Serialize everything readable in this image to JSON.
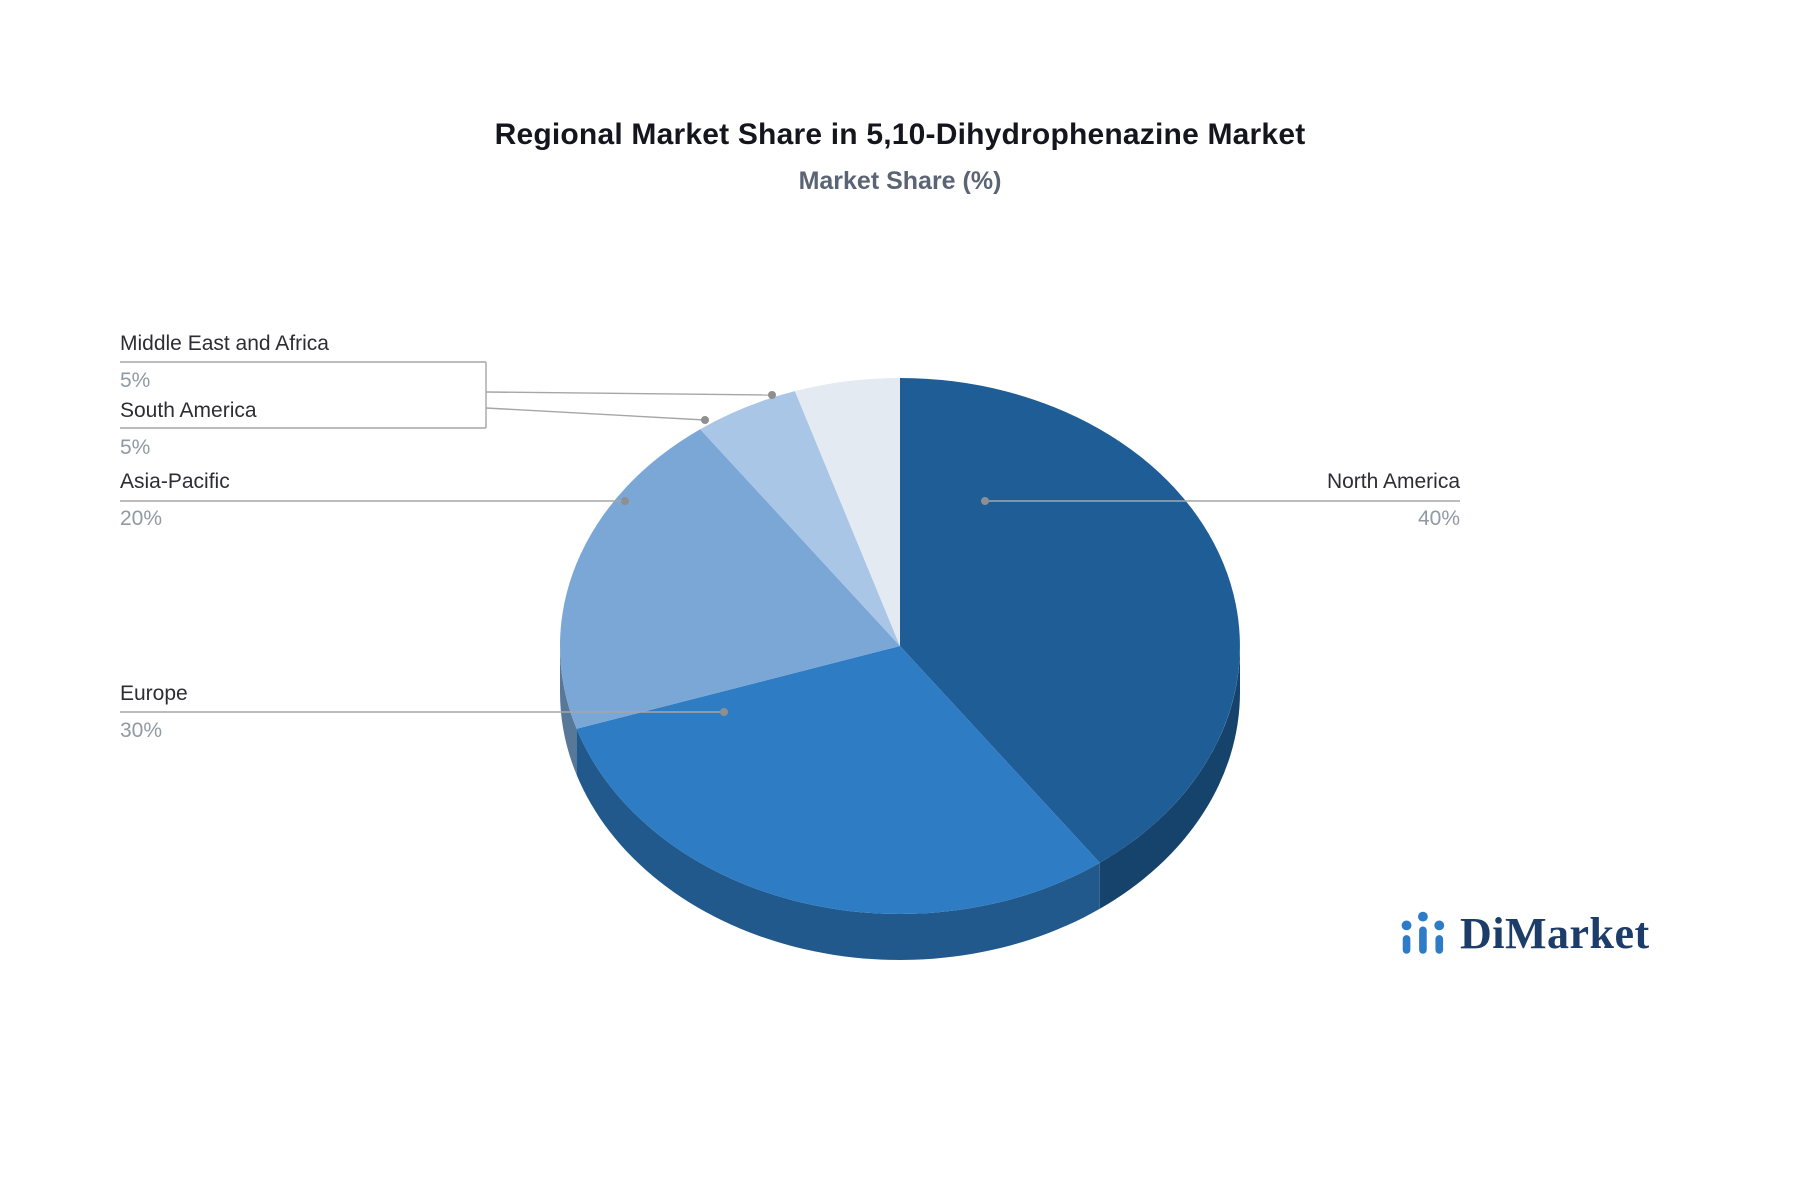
{
  "header": {
    "title": "Regional Market Share in 5,10-Dihydrophenazine Market",
    "subtitle": "Market Share (%)"
  },
  "chart_data": {
    "type": "pie",
    "title": "Regional Market Share in 5,10-Dihydrophenazine Market",
    "subtitle": "Market Share (%)",
    "unit": "%",
    "start_angle_deg": -90,
    "direction": "clockwise",
    "legend_position": "leader-labels",
    "slices": [
      {
        "label": "North America",
        "value": 40,
        "value_text": "40%",
        "color": "#1e5d95"
      },
      {
        "label": "Europe",
        "value": 30,
        "value_text": "30%",
        "color": "#2e7cc3"
      },
      {
        "label": "Asia-Pacific",
        "value": 20,
        "value_text": "20%",
        "color": "#7aa7d6"
      },
      {
        "label": "South America",
        "value": 5,
        "value_text": "5%",
        "color": "#a9c6e6"
      },
      {
        "label": "Middle East and Africa",
        "value": 5,
        "value_text": "5%",
        "color": "#e4eaf1"
      }
    ]
  },
  "brand": {
    "logo_text": "DiMarket",
    "accent_color": "#2e7cc7",
    "text_color": "#1c3c69"
  }
}
